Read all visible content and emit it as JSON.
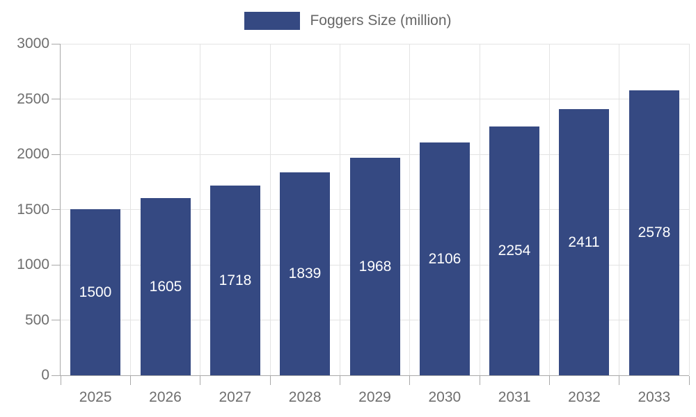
{
  "legend": {
    "label": "Foggers Size (million)"
  },
  "colors": {
    "bar": "#354982",
    "bar_label": "#ffffff",
    "axis_text": "#6e6e6e",
    "legend_text": "#666666",
    "grid": "#e3e3e3",
    "axis_line": "#a8a8a8"
  },
  "chart_data": {
    "type": "bar",
    "title": "Foggers Size (million)",
    "categories": [
      "2025",
      "2026",
      "2027",
      "2028",
      "2029",
      "2030",
      "2031",
      "2032",
      "2033"
    ],
    "series": [
      {
        "name": "Foggers Size (million)",
        "values": [
          1500,
          1605,
          1718,
          1839,
          1968,
          2106,
          2254,
          2411,
          2578
        ]
      }
    ],
    "xlabel": "",
    "ylabel": "",
    "ylim": [
      0,
      3000
    ],
    "yticks": [
      0,
      500,
      1000,
      1500,
      2000,
      2500,
      3000
    ],
    "grid": true,
    "legend_position": "top",
    "value_labels": "inside-center"
  }
}
